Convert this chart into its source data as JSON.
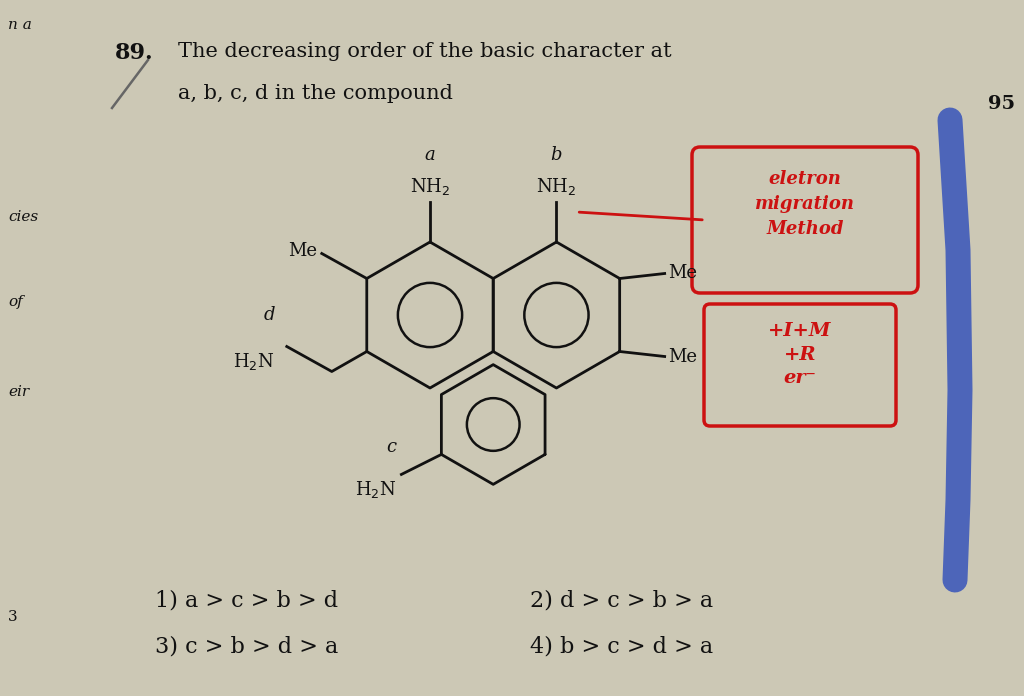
{
  "background_color": "#ccc8b5",
  "title_line1": "The decreasing order of the basic character at",
  "title_line2": "a, b, c, d in the compound",
  "question_num": "89.",
  "options": [
    "1) a > c > b > d",
    "2) d > c > b > a",
    "3) c > b > d > a",
    "4) b > c > d > a"
  ],
  "ann1_text": "eletron\nmigration\nMethod",
  "ann2_text": "+I+M\n+R\ner⁻",
  "annotation_color": "#cc1111",
  "text_color": "#111111",
  "side_left_top": "n a",
  "side_left_1": "cies",
  "side_left_2": "of",
  "side_left_3": "eir",
  "side_left_4": "3",
  "side_right": "95",
  "blue_pen_color": "#2244bb"
}
